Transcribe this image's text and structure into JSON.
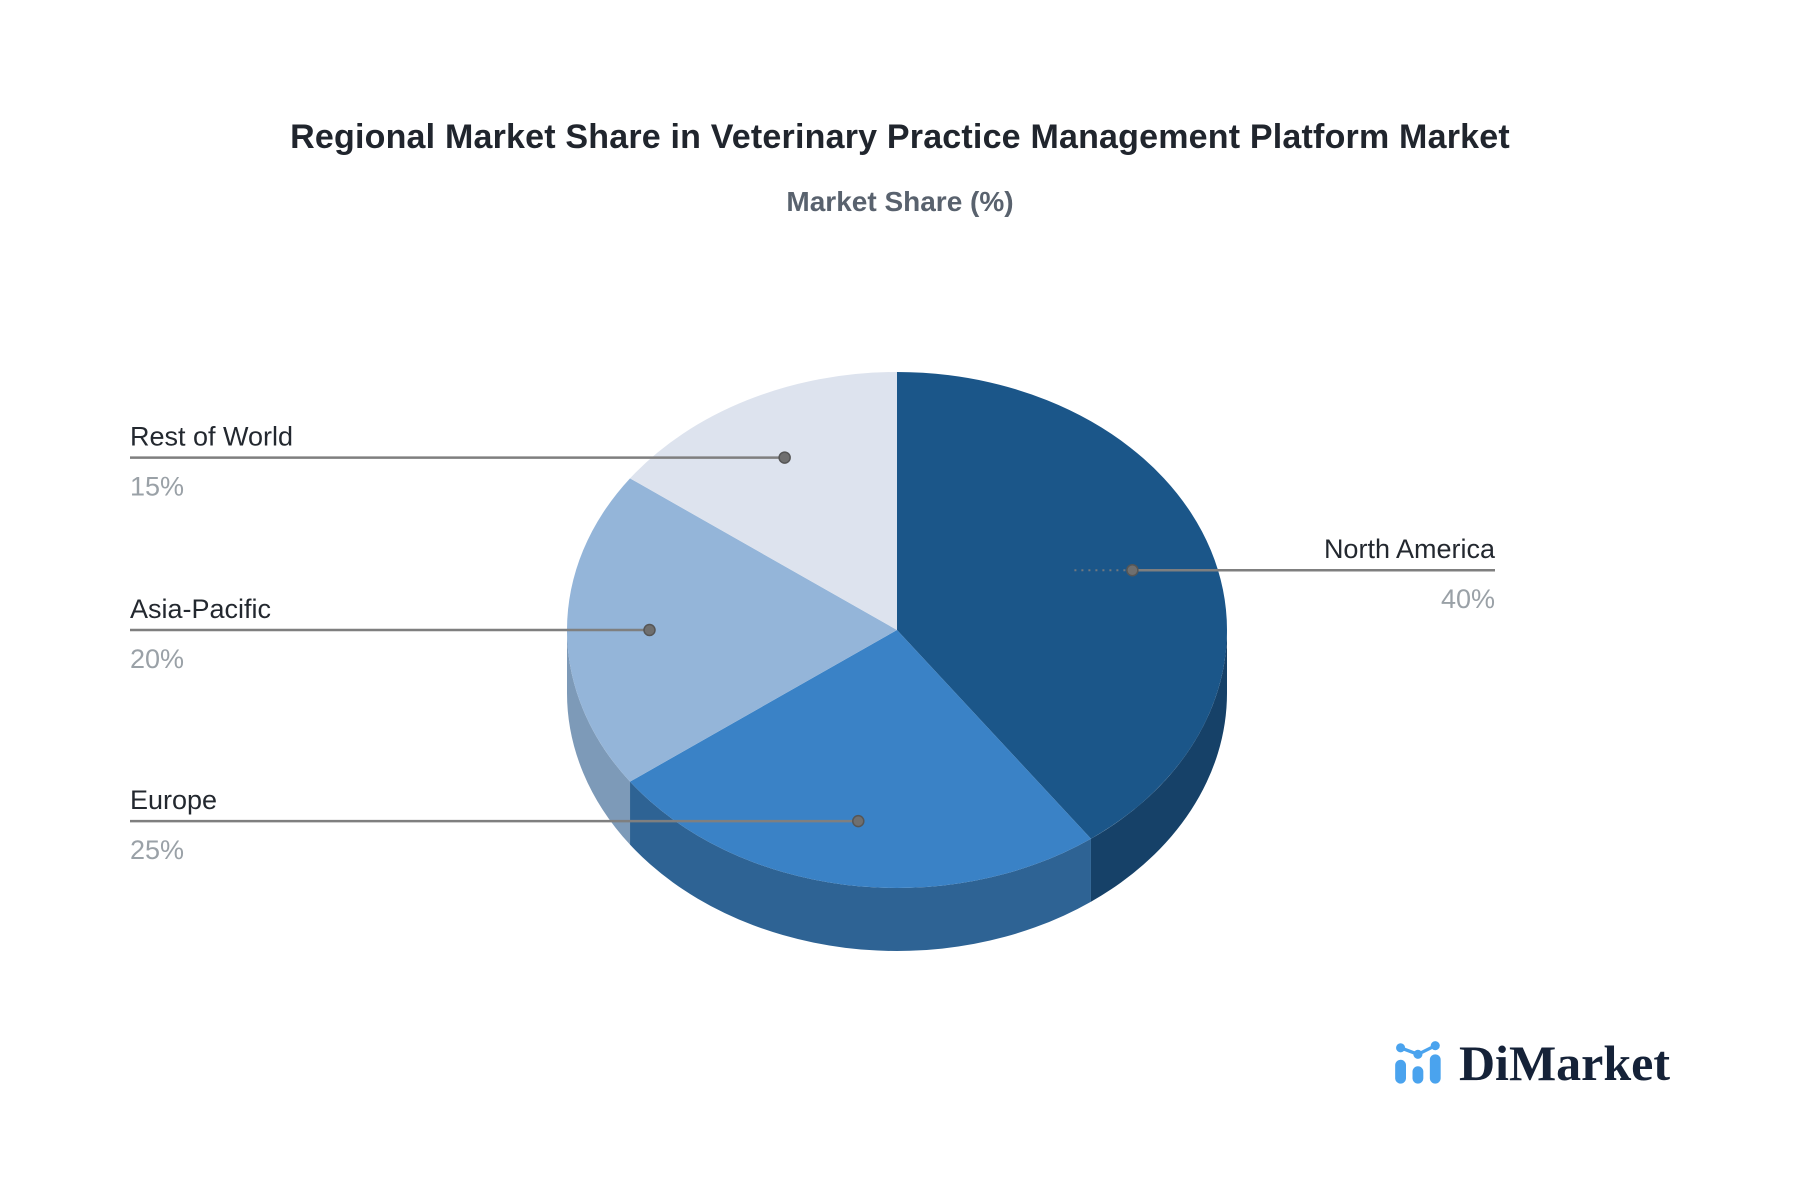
{
  "header": {
    "title": "Regional Market Share in Veterinary Practice Management Platform Market",
    "subtitle": "Market Share (%)"
  },
  "chart_data": {
    "type": "pie",
    "style": "3d",
    "title": "Regional Market Share in Veterinary Practice Management Platform Market",
    "subtitle": "Market Share (%)",
    "unit": "%",
    "start_angle": "12-o'clock",
    "direction": "clockwise",
    "slices": [
      {
        "label": "North America",
        "value": 40,
        "display": "40%",
        "color": "#1b5689",
        "side_color": "#164168",
        "label_side": "right"
      },
      {
        "label": "Europe",
        "value": 25,
        "display": "25%",
        "color": "#3a82c6",
        "side_color": "#2e6394",
        "label_side": "left"
      },
      {
        "label": "Asia-Pacific",
        "value": 20,
        "display": "20%",
        "color": "#94b5d9",
        "side_color": "#7d9ab8",
        "label_side": "left"
      },
      {
        "label": "Rest of World",
        "value": 15,
        "display": "15%",
        "color": "#dde3ee",
        "side_color": "#c3cedf",
        "label_side": "left"
      }
    ],
    "label_color": "#23282f",
    "value_color": "#9aa1a7",
    "leader_line_color": "#7f7f7f",
    "legend": "none",
    "grid": "off"
  },
  "brand": {
    "name": "DiMarket",
    "color": "#152238",
    "accent": "#4aa3ee"
  }
}
